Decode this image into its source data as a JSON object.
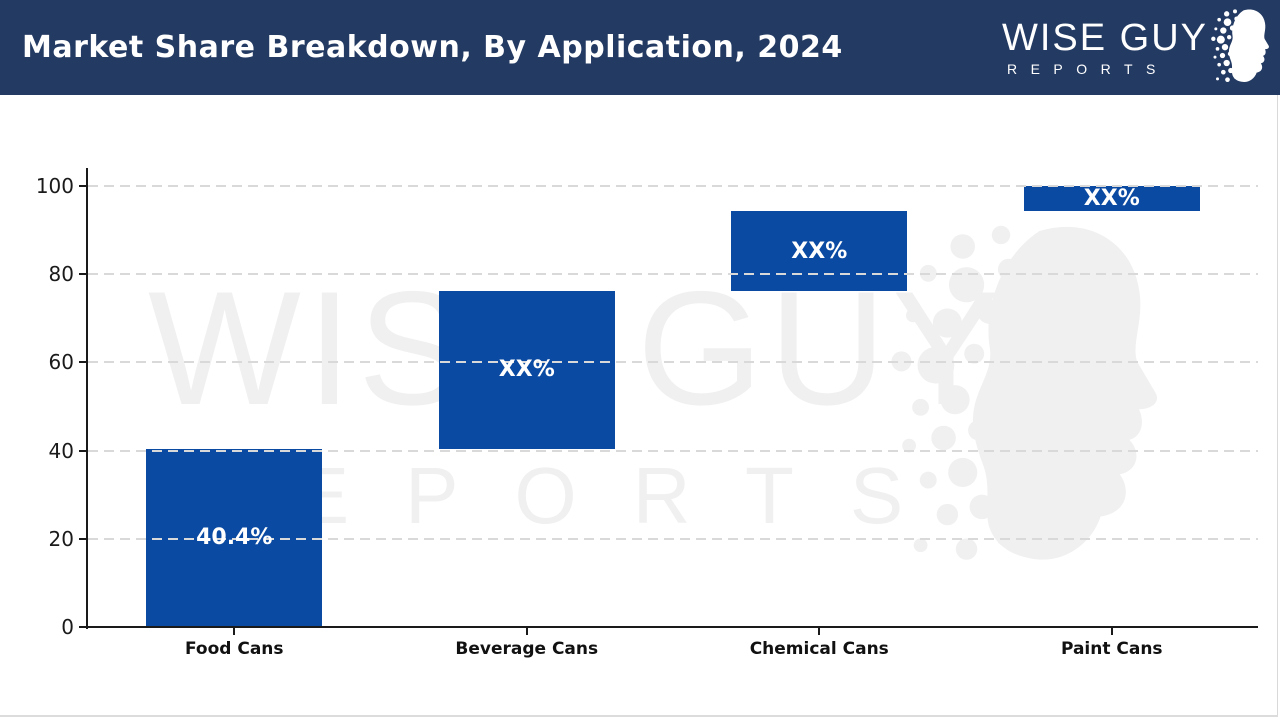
{
  "header": {
    "title": "Market Share Breakdown, By Application, 2024",
    "bg_color": "#233a63",
    "logo": {
      "line1": "WISE GUY",
      "line2": "REPORTS"
    }
  },
  "watermark": {
    "line1": "WISE GUY",
    "line2": "REPORTS"
  },
  "chart_data": {
    "type": "bar",
    "subtype": "waterfall",
    "title": "Market Share Breakdown, By Application, 2024",
    "categories": [
      "Food Cans",
      "Beverage Cans",
      "Chemical Cans",
      "Paint Cans"
    ],
    "series": [
      {
        "name": "Market Share",
        "segments": [
          {
            "category": "Food Cans",
            "start": 0,
            "end": 40.4,
            "label": "40.4%"
          },
          {
            "category": "Beverage Cans",
            "start": 40.4,
            "end": 76.2,
            "label": "XX%"
          },
          {
            "category": "Chemical Cans",
            "start": 76.2,
            "end": 94.3,
            "label": "XX%"
          },
          {
            "category": "Paint Cans",
            "start": 94.3,
            "end": 100,
            "label": "XX%"
          }
        ]
      }
    ],
    "xlabel": "",
    "ylabel": "",
    "ylim": [
      0,
      104
    ],
    "yticks": [
      0,
      20,
      40,
      60,
      80,
      100
    ],
    "grid": "horizontal-dashed",
    "legend": "none",
    "bar_color": "#0b4aa2",
    "bar_label_color": "#ffffff",
    "grid_color": "#d9d9d9",
    "axis_color": "#1a1a1a"
  }
}
